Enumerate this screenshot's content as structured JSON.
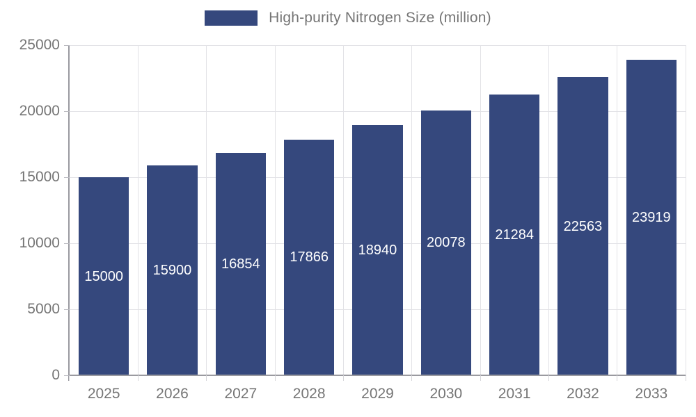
{
  "chart_data": {
    "type": "bar",
    "legend_label": "High-purity Nitrogen Size (million)",
    "series_name": "High-purity Nitrogen Size (million)",
    "categories": [
      "2025",
      "2026",
      "2027",
      "2028",
      "2029",
      "2030",
      "2031",
      "2032",
      "2033"
    ],
    "values": [
      15000,
      15900,
      16854,
      17866,
      18940,
      20078,
      21284,
      22563,
      23919
    ],
    "title": "",
    "xlabel": "",
    "ylabel": "",
    "ylim": [
      0,
      25000
    ],
    "yticks": [
      0,
      5000,
      10000,
      15000,
      20000,
      25000
    ],
    "grid": true,
    "legend_position": "top-center",
    "bar_color": "#35487d",
    "value_label_color": "#ffffff",
    "axis_text_color": "#757575",
    "grid_color": "#e2e2e6",
    "axis_line_color": "#9a9aa0"
  }
}
